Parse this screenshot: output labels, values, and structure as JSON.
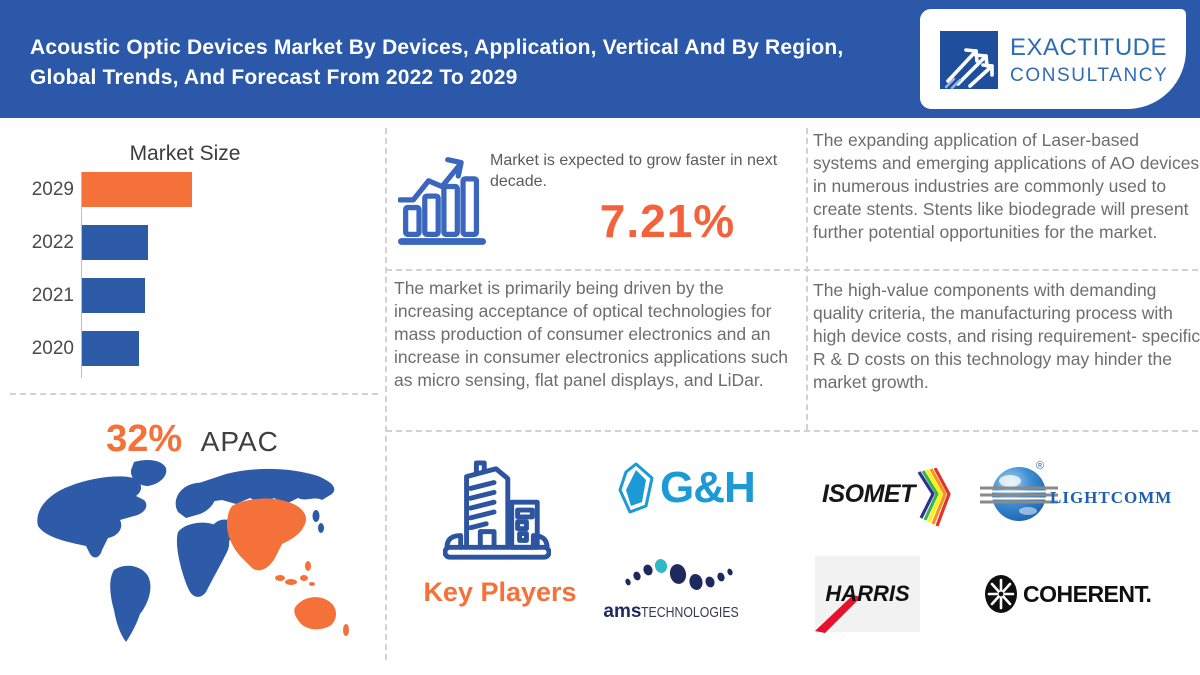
{
  "header": {
    "title_line1": "Acoustic Optic Devices Market By Devices, Application, Vertical And By Region,",
    "title_line2": "Global Trends, And Forecast From 2022 To 2029",
    "brand": {
      "name": "EXACTITUDE",
      "subname": "CONSULTANCY"
    }
  },
  "chart_data": {
    "type": "bar",
    "orientation": "horizontal",
    "title": "Market Size",
    "categories": [
      "2029",
      "2022",
      "2021",
      "2020"
    ],
    "values": [
      100,
      60,
      57,
      52
    ],
    "value_note": "relative bar lengths, % of max; no numeric axis shown in figure",
    "series_colors": [
      "#f4713a",
      "#2e5ba8",
      "#2e5ba8",
      "#2e5ba8"
    ],
    "highlight": "2029 forecast bar shown in orange",
    "grid": false,
    "legend": false
  },
  "growth": {
    "caption": "Market is expected to grow faster in next decade.",
    "cagr": "7.21%"
  },
  "insights": {
    "opportunity": "The expanding application of Laser-based systems and emerging applications of AO devices in numerous industries are commonly used to create stents. Stents like biodegrade will present further potential opportunities for the market.",
    "driver": "The market is primarily being driven by the increasing acceptance of optical technologies for mass production of consumer electronics and an increase in consumer electronics applications such as micro sensing, flat panel displays, and LiDar.",
    "restraint": "The high-value components with demanding quality criteria, the manufacturing process with high device costs, and rising requirement- specific R & D costs on this technology may hinder the market growth."
  },
  "region": {
    "share": "32%",
    "label": "APAC"
  },
  "key_players": {
    "label": "Key Players",
    "gh": "G&H",
    "isomet": "ISOMET",
    "lightcomm": "LIGHTCOMM",
    "lightcomm_reg": "®",
    "ams_bold": "ams",
    "ams_rest": "TECHNOLOGIES",
    "harris": "HARRIS",
    "coherent": "COHERENT."
  },
  "colors": {
    "header_blue": "#2b58a8",
    "bar_blue": "#2e5ba8",
    "accent_orange": "#f4713a",
    "paragraph_gray": "#6d6d6d",
    "gh_cyan": "#1b9ad6",
    "ams_navy": "#1e2a5e",
    "lightcomm_blue": "#1f5fae",
    "harris_red": "#e8112d"
  }
}
